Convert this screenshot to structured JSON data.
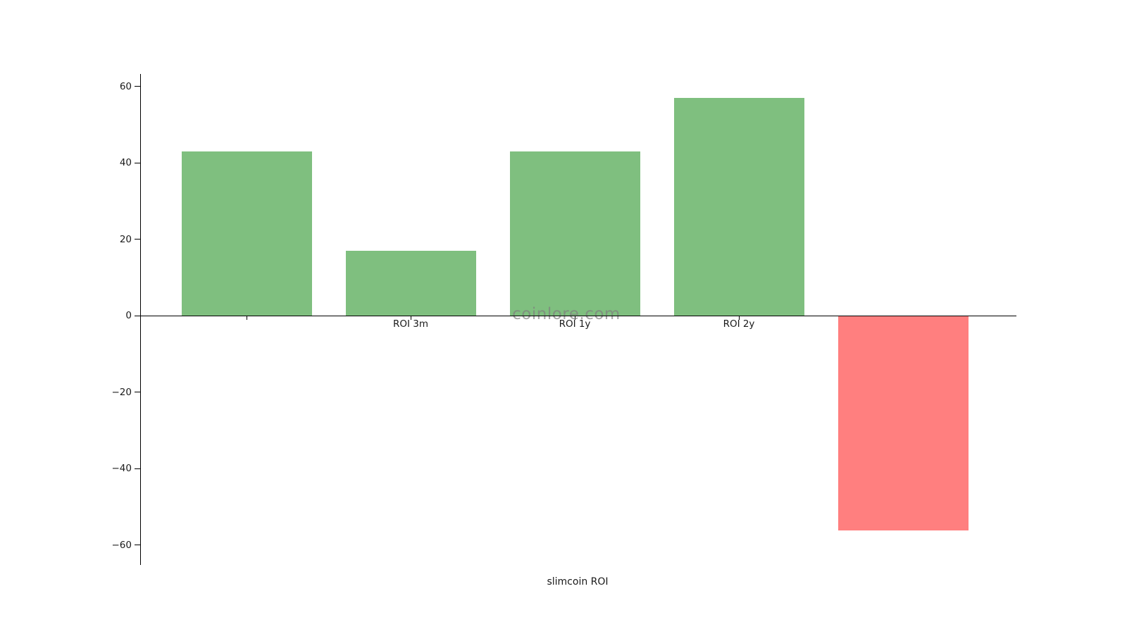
{
  "watermark": "coinlore.com",
  "chart_data": {
    "type": "bar",
    "title": "slimcoin ROI",
    "categories": [
      "",
      "ROI 3m",
      "ROI 1y",
      "ROI 2y",
      ""
    ],
    "values": [
      43,
      17,
      43,
      57,
      -56
    ],
    "yticks": [
      60,
      40,
      20,
      0,
      -20,
      -40,
      -60
    ],
    "ylim": [
      -65,
      63
    ],
    "grid": false,
    "legend": false,
    "positive_color": "#7fbf7f",
    "negative_color": "#ff7f7f",
    "axis_color": "#000000",
    "text_color": "#1a1a1a",
    "watermark_color": "#808080"
  }
}
